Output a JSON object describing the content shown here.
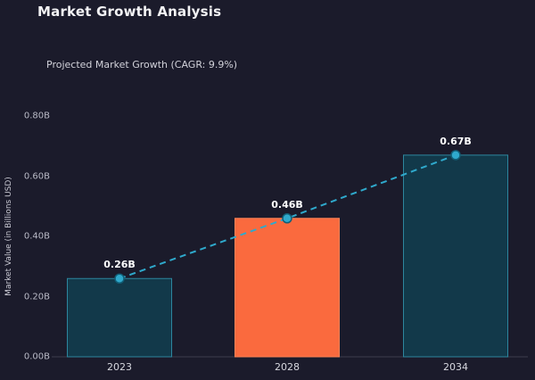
{
  "chart_data": {
    "type": "bar",
    "title": "Market Growth Analysis",
    "subtitle": "Projected Market Growth (CAGR: 9.9%)",
    "xlabel": "",
    "ylabel": "Market Value (in Billions USD)",
    "categories": [
      "2023",
      "2028",
      "2034"
    ],
    "values": [
      0.26,
      0.46,
      0.67
    ],
    "value_labels": [
      "0.26B",
      "0.46B",
      "0.67B"
    ],
    "bar_colors": [
      "#12394a",
      "#fa6a3e",
      "#12394a"
    ],
    "bar_border_colors": [
      "#2d869e",
      "#fb8257",
      "#2d869e"
    ],
    "trend_line": {
      "style": "dashed",
      "color": "#2fa9cc",
      "marker_color": "#2fa9cc",
      "marker_border_color": "#115e76"
    },
    "ylim": [
      0,
      0.8
    ],
    "yticks": [
      {
        "label": "0.00B",
        "value": 0.0
      },
      {
        "label": "0.20B",
        "value": 0.2
      },
      {
        "label": "0.40B",
        "value": 0.4
      },
      {
        "label": "0.60B",
        "value": 0.6
      },
      {
        "label": "0.80B",
        "value": 0.8
      }
    ],
    "grid": false,
    "legend": false,
    "colors": {
      "background": "#1b1b2b",
      "axis_line": "#3c3c4e",
      "title_text": "#f2f2f4",
      "tick_text": "#b9bac6"
    }
  }
}
